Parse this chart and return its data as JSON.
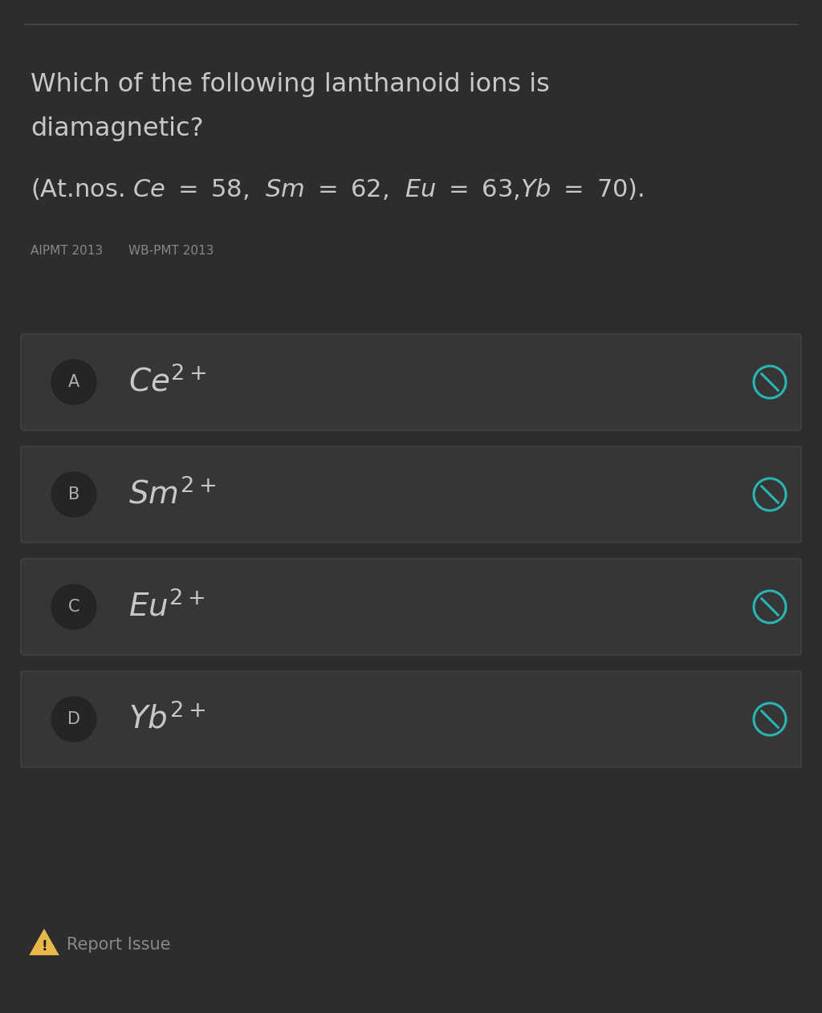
{
  "bg_color": "#2d2d2d",
  "top_line_color": "#4a4a4a",
  "question_text_line1": "Which of the following lanthanoid ions is",
  "question_text_line2": "diamagnetic?",
  "at_nos_text": "(At.nos. Ce = 58,  Sm = 62,  Eu = 63,Yb = 70).",
  "tags": [
    "AIPMT 2013",
    "WB-PMT 2013"
  ],
  "tag_color": "#888888",
  "options": [
    {
      "label": "A",
      "text": "Ce",
      "sup": "2+"
    },
    {
      "label": "B",
      "text": "Sm",
      "sup": "2+"
    },
    {
      "label": "C",
      "text": "Eu",
      "sup": "2+"
    },
    {
      "label": "D",
      "text": "Yb",
      "sup": "2+"
    }
  ],
  "option_bg_color": "#363636",
  "option_border_color": "#484848",
  "option_label_bg": "#252525",
  "option_label_text_color": "#b0b0b0",
  "option_formula_color": "#c8c8c8",
  "icon_color": "#2ab5b5",
  "text_color": "#c8c8c8",
  "report_text": "Report Issue",
  "report_color": "#888888",
  "warning_color": "#aaaaaa",
  "fig_width": 10.24,
  "fig_height": 12.62,
  "dpi": 100
}
